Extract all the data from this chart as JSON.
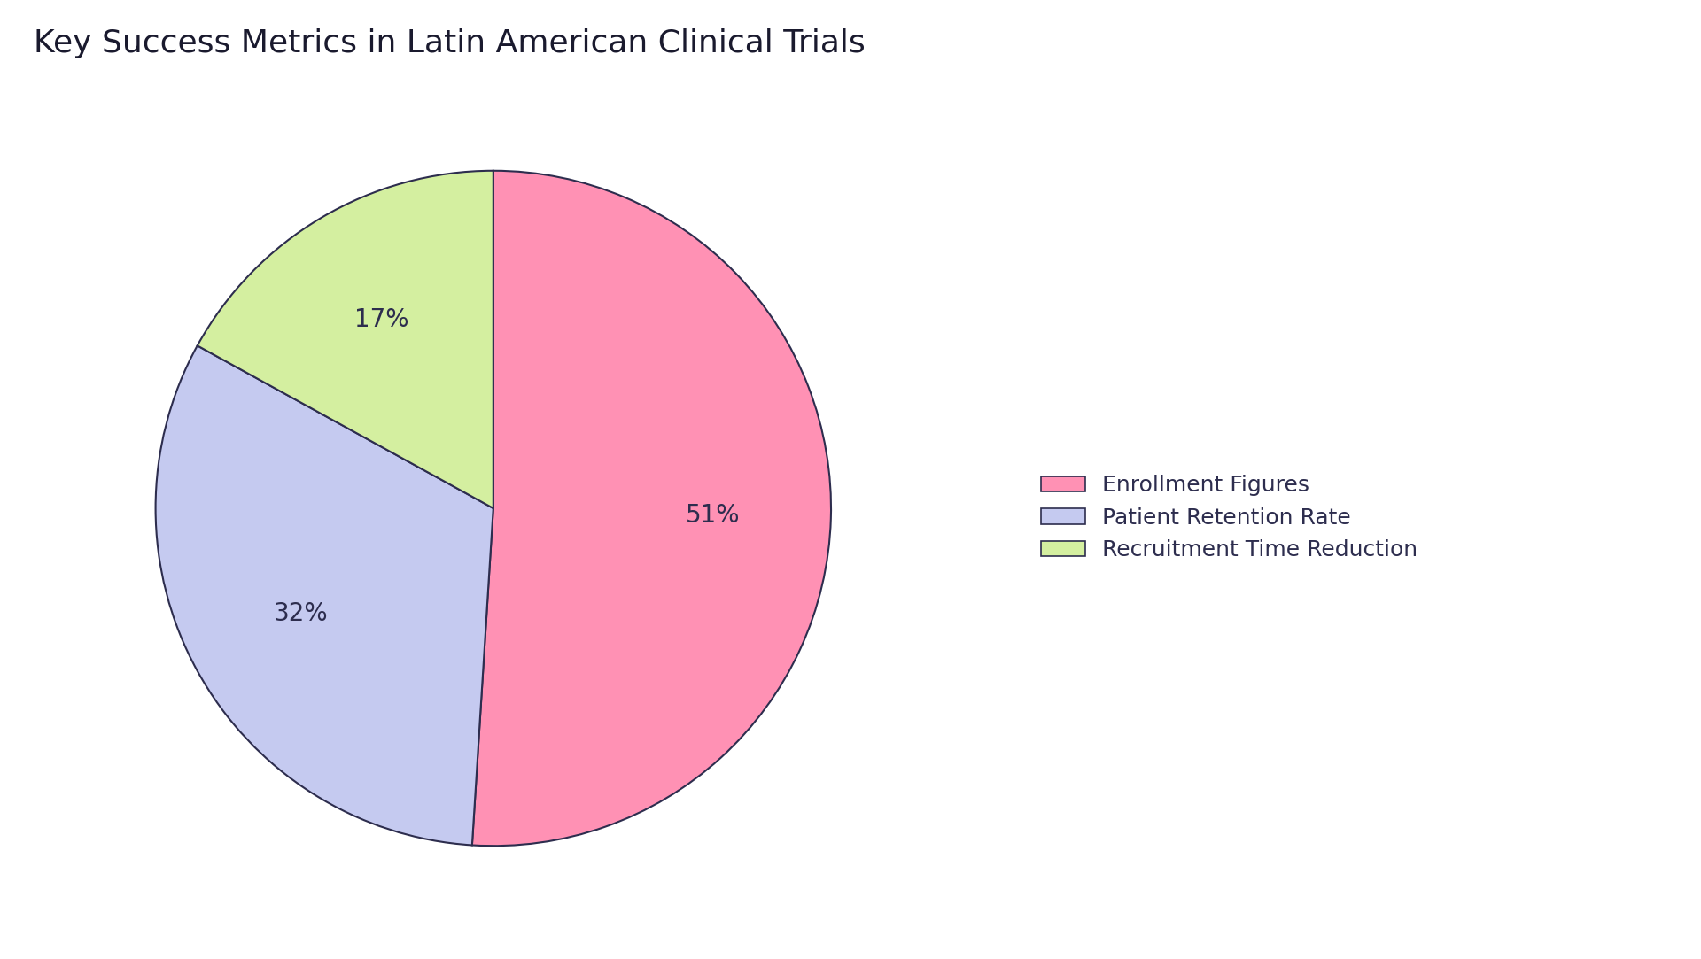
{
  "title": "Key Success Metrics in Latin American Clinical Trials",
  "slices": [
    {
      "label": "Enrollment Figures",
      "value": 51,
      "color": "#FF91B4"
    },
    {
      "label": "Patient Retention Rate",
      "value": 32,
      "color": "#C5CAF0"
    },
    {
      "label": "Recruitment Time Reduction",
      "value": 17,
      "color": "#D4EFA0"
    }
  ],
  "wedge_edge_color": "#2D2D4E",
  "wedge_edge_width": 1.5,
  "background_color": "#FFFFFF",
  "title_fontsize": 26,
  "title_color": "#1a1a2e",
  "autopct_fontsize": 20,
  "autopct_color": "#2D2D4E",
  "legend_fontsize": 18,
  "startangle": 90
}
